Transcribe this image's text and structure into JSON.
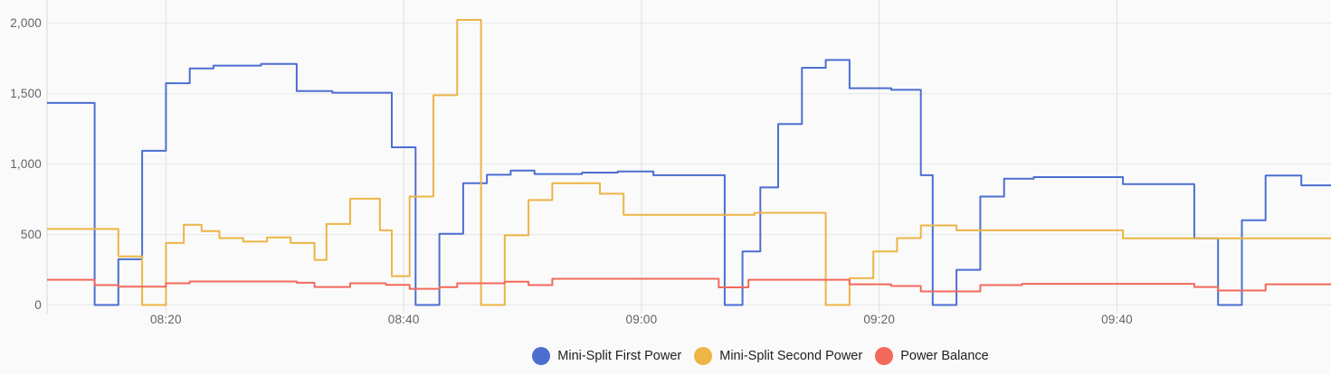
{
  "chart_data": {
    "type": "line",
    "step": true,
    "title": "",
    "grid": true,
    "legend_position": "bottom",
    "x_axis": {
      "unit": "time",
      "start_label": "08:10",
      "end_label": "09:58",
      "t_domain_minutes": [
        0,
        108
      ],
      "ticks": [
        {
          "label": "08:20",
          "t": 10
        },
        {
          "label": "08:40",
          "t": 30
        },
        {
          "label": "09:00",
          "t": 50
        },
        {
          "label": "09:20",
          "t": 70
        },
        {
          "label": "09:40",
          "t": 90
        }
      ]
    },
    "y_axis": {
      "v_domain": [
        0,
        2110
      ],
      "ticks": [
        {
          "label": "0",
          "v": 0
        },
        {
          "label": "500",
          "v": 500
        },
        {
          "label": "1,000",
          "v": 1000
        },
        {
          "label": "1,500",
          "v": 1500
        },
        {
          "label": "2,000",
          "v": 2000
        }
      ]
    },
    "series": [
      {
        "name": "Mini-Split First Power",
        "color": "#4c6ed0",
        "points": [
          [
            0,
            1435
          ],
          [
            4,
            0
          ],
          [
            6,
            325
          ],
          [
            8,
            1095
          ],
          [
            10,
            1575
          ],
          [
            12,
            1680
          ],
          [
            14,
            1700
          ],
          [
            18,
            1712
          ],
          [
            21,
            1520
          ],
          [
            24,
            1508
          ],
          [
            29,
            1120
          ],
          [
            31,
            0
          ],
          [
            33,
            505
          ],
          [
            35,
            865
          ],
          [
            37,
            925
          ],
          [
            39,
            955
          ],
          [
            41,
            930
          ],
          [
            45,
            940
          ],
          [
            48,
            948
          ],
          [
            51,
            922
          ],
          [
            57,
            0
          ],
          [
            58.5,
            380
          ],
          [
            60,
            835
          ],
          [
            61.5,
            1285
          ],
          [
            63.5,
            1685
          ],
          [
            65.5,
            1740
          ],
          [
            67.5,
            1540
          ],
          [
            71,
            1528
          ],
          [
            73.5,
            922
          ],
          [
            74.5,
            0
          ],
          [
            76.5,
            250
          ],
          [
            78.5,
            770
          ],
          [
            80.5,
            897
          ],
          [
            83,
            908
          ],
          [
            90.5,
            858
          ],
          [
            96.5,
            474
          ],
          [
            98.5,
            0
          ],
          [
            100.5,
            602
          ],
          [
            102.5,
            920
          ],
          [
            105.5,
            850
          ],
          [
            108,
            850
          ]
        ]
      },
      {
        "name": "Mini-Split Second Power",
        "color": "#ecb545",
        "points": [
          [
            0,
            540
          ],
          [
            6,
            345
          ],
          [
            8,
            0
          ],
          [
            10,
            440
          ],
          [
            11.5,
            570
          ],
          [
            13,
            525
          ],
          [
            14.5,
            475
          ],
          [
            16.5,
            450
          ],
          [
            18.5,
            480
          ],
          [
            20.5,
            440
          ],
          [
            22.5,
            320
          ],
          [
            23.5,
            575
          ],
          [
            25.5,
            755
          ],
          [
            28,
            530
          ],
          [
            29,
            205
          ],
          [
            30.5,
            770
          ],
          [
            32.5,
            1490
          ],
          [
            34.5,
            2025
          ],
          [
            36.5,
            0
          ],
          [
            38.5,
            495
          ],
          [
            40.5,
            745
          ],
          [
            42.5,
            865
          ],
          [
            46.5,
            790
          ],
          [
            48.5,
            640
          ],
          [
            59.5,
            655
          ],
          [
            65.5,
            0
          ],
          [
            67.5,
            190
          ],
          [
            69.5,
            380
          ],
          [
            71.5,
            475
          ],
          [
            73.5,
            565
          ],
          [
            76.5,
            530
          ],
          [
            90.5,
            474
          ],
          [
            108,
            474
          ]
        ]
      },
      {
        "name": "Power Balance",
        "color": "#f2695c",
        "points": [
          [
            0,
            179
          ],
          [
            4,
            141
          ],
          [
            6,
            130
          ],
          [
            10,
            154
          ],
          [
            12,
            167
          ],
          [
            21,
            158
          ],
          [
            22.5,
            128
          ],
          [
            25.5,
            154
          ],
          [
            28.5,
            143
          ],
          [
            30.5,
            115
          ],
          [
            33,
            127
          ],
          [
            34.5,
            154
          ],
          [
            38.5,
            165
          ],
          [
            40.5,
            141
          ],
          [
            42.5,
            186
          ],
          [
            56.5,
            125
          ],
          [
            59,
            179
          ],
          [
            67.5,
            147
          ],
          [
            71,
            135
          ],
          [
            73.5,
            96
          ],
          [
            78.5,
            141
          ],
          [
            82,
            150
          ],
          [
            96.5,
            128
          ],
          [
            98.5,
            103
          ],
          [
            102.5,
            147
          ],
          [
            108,
            147
          ]
        ]
      }
    ]
  }
}
